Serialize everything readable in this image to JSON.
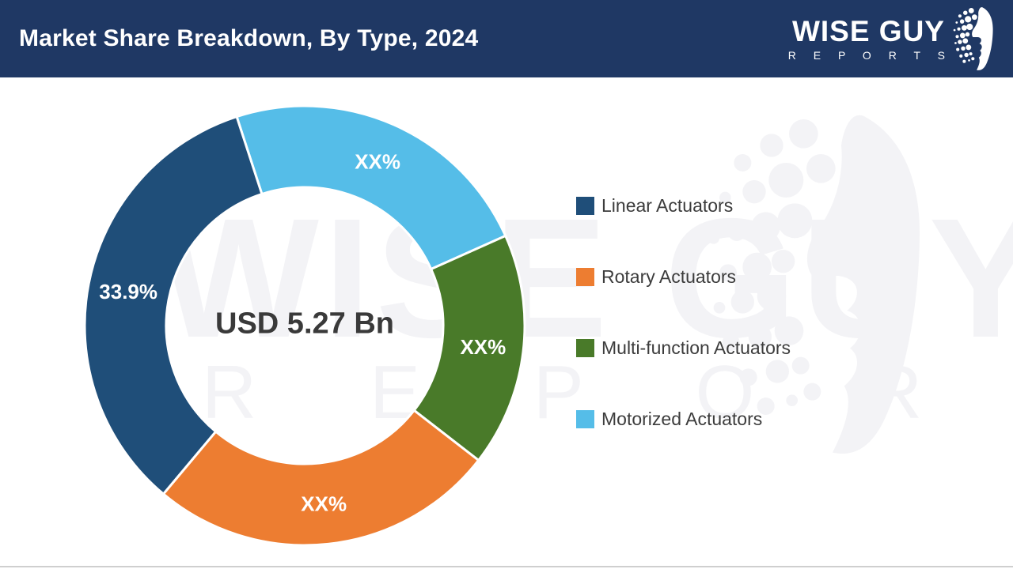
{
  "header": {
    "title": "Market Share Breakdown, By Type, 2024",
    "logo": {
      "name": "WISE GUY",
      "subtitle": "R E P O R T S"
    }
  },
  "watermark": {
    "line1": "WISE GUY",
    "line2": "R E P O R T S"
  },
  "chart_data": {
    "type": "pie",
    "variant": "donut",
    "title": "Market Share Breakdown, By Type, 2024",
    "center_label": "USD 5.27 Bn",
    "slices": [
      {
        "label": "Linear Actuators",
        "display": "33.9%",
        "pct": 33.9,
        "color": "#1F4E79"
      },
      {
        "label": "Rotary Actuators",
        "display": "XX%",
        "pct": 25.6,
        "color": "#ED7D31"
      },
      {
        "label": "Multi-function Actuators",
        "display": "XX%",
        "pct": 17.2,
        "color": "#497A29"
      },
      {
        "label": "Motorized Actuators",
        "display": "XX%",
        "pct": 23.3,
        "color": "#55BDE8"
      }
    ],
    "layout": {
      "start_angle_deg": 108,
      "direction": "clockwise",
      "draw_order": [
        3,
        2,
        1,
        0
      ],
      "outer_radius": 278,
      "inner_radius": 175,
      "label_radius": 227,
      "slice_gap_stroke": "#ffffff",
      "legend_position": "right"
    },
    "colors": {
      "header_bar": "#1F3864",
      "center_text": "#3a3a3a",
      "slice_label_text": "#ffffff",
      "watermark": "#f3f3f6"
    }
  }
}
